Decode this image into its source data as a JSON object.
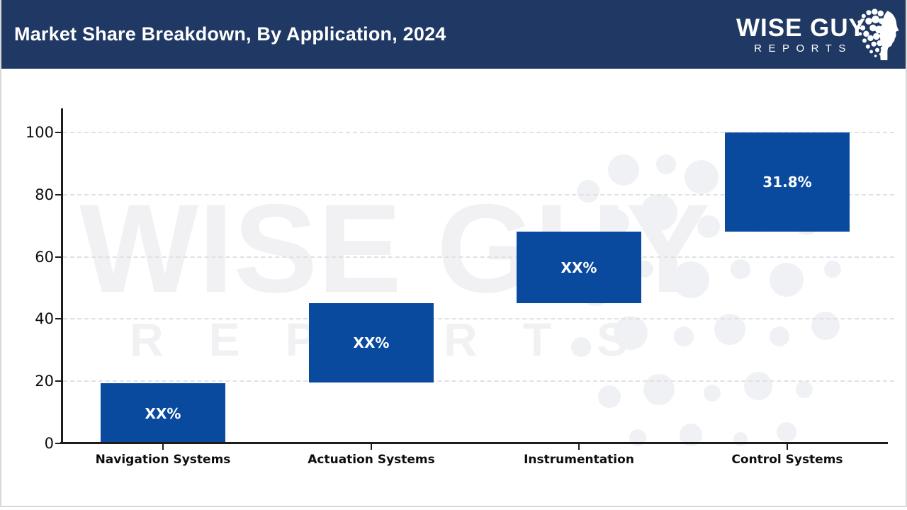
{
  "header": {
    "title": "Market Share Breakdown, By Application, 2024",
    "bg_color": "#1f3864",
    "logo": {
      "line1": "WISE GUY",
      "line2": "REPORTS"
    }
  },
  "watermark": {
    "line1": "WISE GUY",
    "line2": "REPORTS"
  },
  "chart_data": {
    "type": "bar",
    "subtype": "floating-waterfall",
    "title": "Market Share Breakdown, By Application, 2024",
    "categories": [
      "Navigation Systems",
      "Actuation Systems",
      "Instrumentation",
      "Control Systems"
    ],
    "series": [
      {
        "name": "Market share segment",
        "segments": [
          {
            "start": 0,
            "end": 19.4,
            "label": "XX%"
          },
          {
            "start": 19.6,
            "end": 45.1,
            "label": "XX%"
          },
          {
            "start": 45.1,
            "end": 68.2,
            "label": "XX%"
          },
          {
            "start": 68.2,
            "end": 100,
            "label": "31.8%"
          }
        ]
      }
    ],
    "xlabel": "",
    "ylabel": "",
    "yticks": [
      0,
      20,
      40,
      60,
      80,
      100
    ],
    "ylim": [
      0,
      107
    ],
    "grid": "horizontal-dashed",
    "legend": "none",
    "bar_color": "#0a4a9e",
    "grid_color": "#e1e1e1",
    "axis_color": "#1c1c1c",
    "watermark_text": "WISE GUY REPORTS"
  }
}
